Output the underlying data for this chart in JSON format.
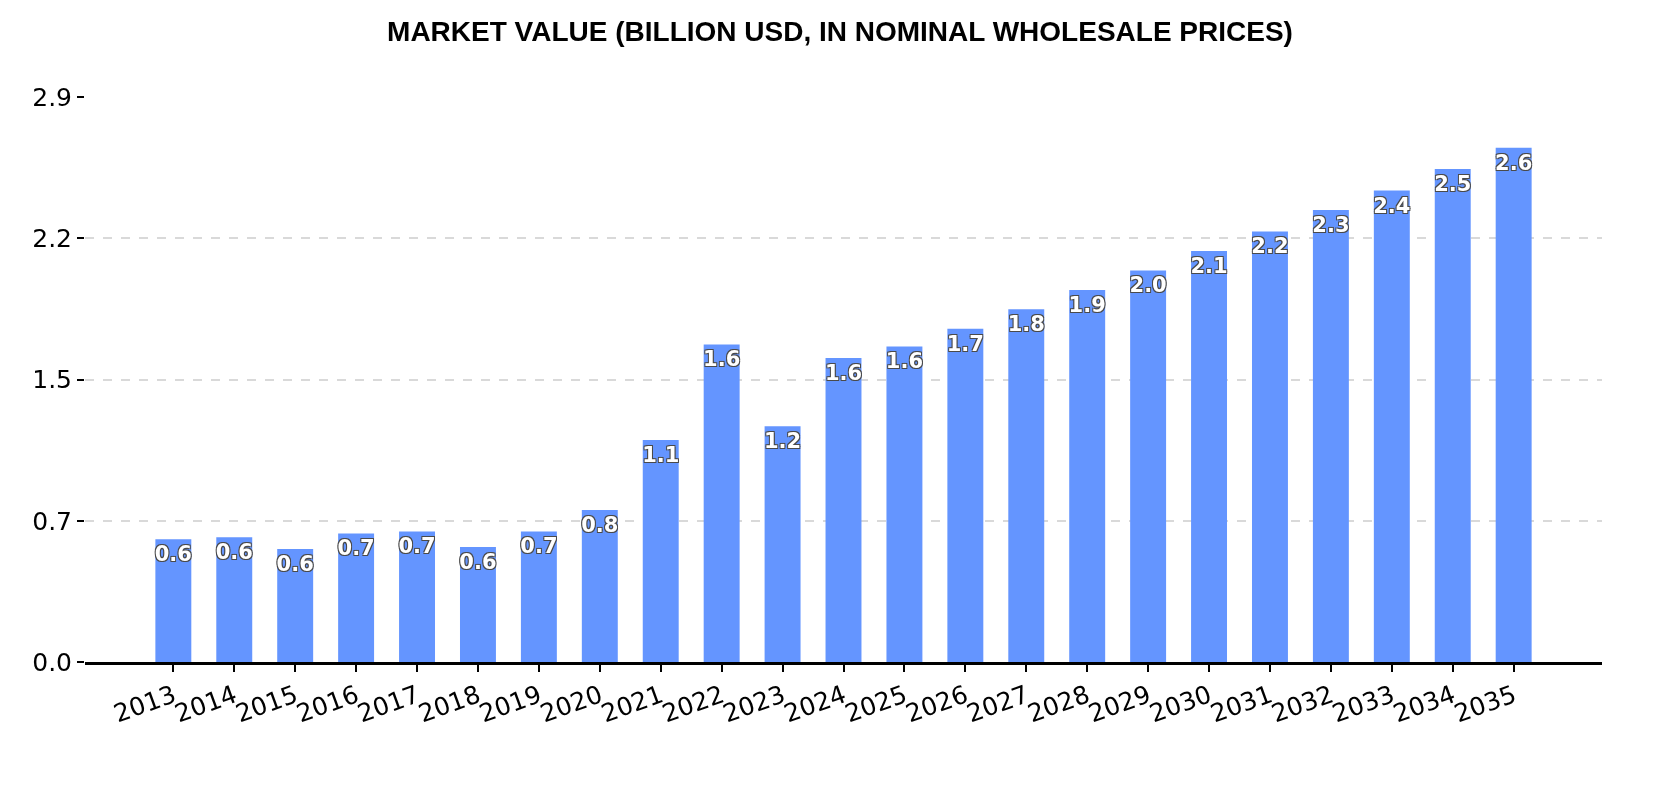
{
  "chart_data": {
    "type": "bar",
    "title": "MARKET VALUE (BILLION USD, IN NOMINAL WHOLESALE PRICES)",
    "categories": [
      "2013",
      "2014",
      "2015",
      "2016",
      "2017",
      "2018",
      "2019",
      "2020",
      "2021",
      "2022",
      "2023",
      "2024",
      "2025",
      "2026",
      "2027",
      "2028",
      "2029",
      "2030",
      "2031",
      "2032",
      "2033",
      "2034",
      "2035"
    ],
    "values": [
      0.63,
      0.64,
      0.58,
      0.66,
      0.67,
      0.59,
      0.67,
      0.78,
      1.14,
      1.63,
      1.21,
      1.56,
      1.62,
      1.71,
      1.81,
      1.91,
      2.01,
      2.11,
      2.21,
      2.32,
      2.42,
      2.53,
      2.64
    ],
    "value_labels": [
      "0.6",
      "0.6",
      "0.6",
      "0.7",
      "0.7",
      "0.6",
      "0.7",
      "0.8",
      "1.1",
      "1.6",
      "1.2",
      "1.6",
      "1.6",
      "1.7",
      "1.8",
      "1.9",
      "2.0",
      "2.1",
      "2.2",
      "2.3",
      "2.4",
      "2.5",
      "2.6"
    ],
    "color": "#6495ff",
    "ylim": [
      0,
      2.9
    ],
    "yticks": [
      {
        "value": 0,
        "label": "0.0"
      },
      {
        "value": 0.725,
        "label": "0.7"
      },
      {
        "value": 1.45,
        "label": "1.5"
      },
      {
        "value": 2.175,
        "label": "2.2"
      },
      2.9
    ],
    "grid": "y"
  }
}
